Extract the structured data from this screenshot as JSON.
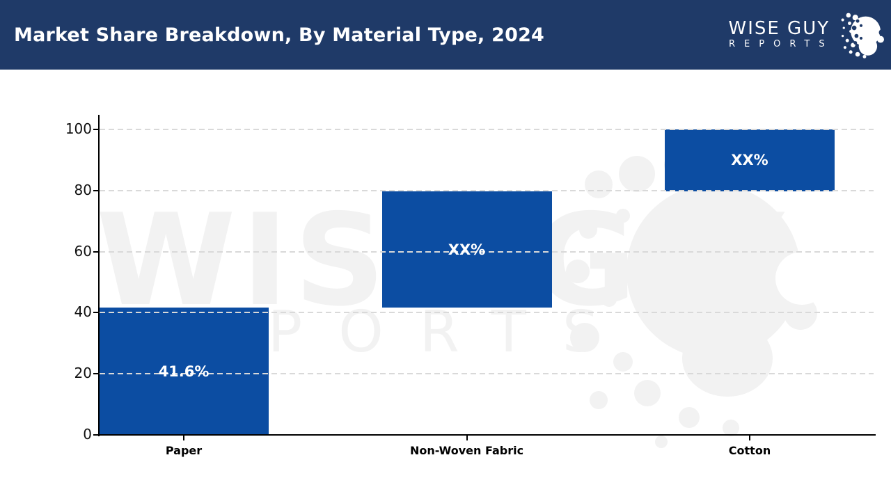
{
  "header": {
    "title": "Market Share Breakdown, By Material Type, 2024",
    "background_color": "#1f3a68",
    "logo": {
      "line1": "WISE GUY",
      "line2": "REPORTS"
    }
  },
  "watermark": {
    "line1": "WISE G Y",
    "line2": "REPORTS"
  },
  "chart_data": {
    "type": "bar",
    "variant": "stacked-waterfall-segments",
    "title": "Market Share Breakdown, By Material Type, 2024",
    "categories": [
      "Paper",
      "Non-Woven Fabric",
      "Cotton"
    ],
    "bars": [
      {
        "category": "Paper",
        "start": 0,
        "end": 41.6,
        "label": "41.6%"
      },
      {
        "category": "Non-Woven Fabric",
        "start": 41.6,
        "end": 79.8,
        "label": "XX%"
      },
      {
        "category": "Cotton",
        "start": 79.8,
        "end": 100,
        "label": "XX%"
      }
    ],
    "ylim": [
      0,
      100
    ],
    "yticks": [
      0,
      20,
      40,
      60,
      80,
      100
    ],
    "xlabel": "",
    "ylabel": "",
    "grid": "horizontal-dashed",
    "legend": "none",
    "bar_color": "#0c4da2",
    "bar_label_color": "#ffffff",
    "axis_color": "#000000",
    "gridline_color": "#d9d9d9"
  }
}
